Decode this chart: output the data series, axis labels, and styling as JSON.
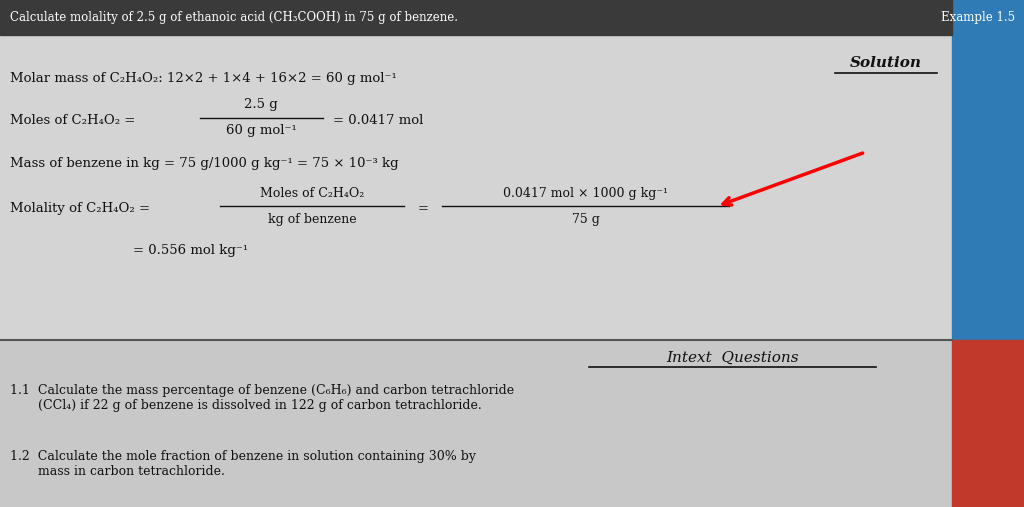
{
  "bg_color": "#d4d4d4",
  "top_bar_color": "#3a3a3a",
  "right_bar_color": "#2e7bb5",
  "bottom_section_color": "#c8c8c8",
  "bottom_right_bar_color": "#c0392b",
  "title_text": "Calculate molality of 2.5 g of ethanoic acid (CH₃COOH) in 75 g of benzene.",
  "example_text": "Example 1.5",
  "solution_text": "Solution",
  "line1": "Molar mass of C₂H₄O₂: 12×2 + 1×4 + 16×2 = 60 g mol⁻¹",
  "line2_left": "Moles of C₂H₄O₂ =",
  "line2_num": "2.5 g",
  "line2_den": "60 g mol⁻¹",
  "line2_right": "= 0.0417 mol",
  "line3": "Mass of benzene in kg = 75 g/1000 g kg⁻¹ = 75 × 10⁻³ kg",
  "line4_left": "Molality of C₂H₄O₂ =",
  "line4_num_left": "Moles of C₂H₄O₂",
  "line4_den_left": "kg of benzene",
  "line4_eq": "=",
  "line4_num_right": "0.0417 mol × 1000 g kg⁻¹",
  "line4_den_right": "75 g",
  "line5": "= 0.556 mol kg⁻¹",
  "intext_title": "Intext  Questions",
  "q1_text": "1.1  Calculate the mass percentage of benzene (C₆H₆) and carbon tetrachloride\n       (CCl₄) if 22 g of benzene is dissolved in 122 g of carbon tetrachloride.",
  "q2_text": "1.2  Calculate the mole fraction of benzene in solution containing 30% by\n       mass in carbon tetrachloride."
}
